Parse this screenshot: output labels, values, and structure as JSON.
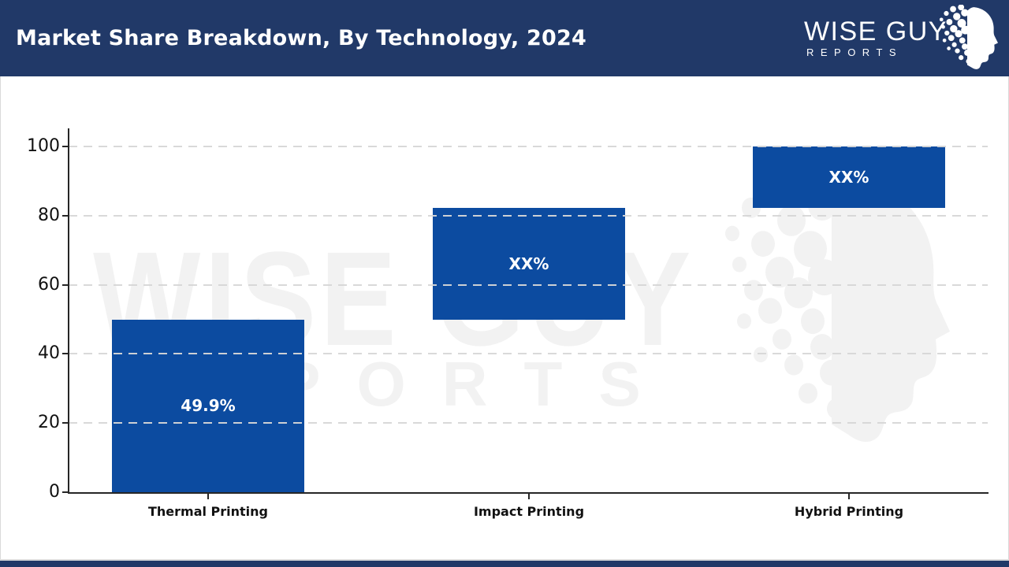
{
  "header": {
    "title": "Market Share Breakdown, By Technology, 2024",
    "logo": {
      "line1": "WISE GUY",
      "line2": "REPORTS"
    }
  },
  "watermark": {
    "line1": "WISE GUY",
    "line2": "REPORTS"
  },
  "chart_data": {
    "type": "bar",
    "subtype": "floating-stacked-segments",
    "title": "Market Share Breakdown, By Technology, 2024",
    "categories": [
      "Thermal Printing",
      "Impact Printing",
      "Hybrid Printing"
    ],
    "series": [
      {
        "name": "Market Share",
        "segments": [
          {
            "category": "Thermal Printing",
            "start": 0,
            "end": 49.9,
            "label": "49.9%"
          },
          {
            "category": "Impact Printing",
            "start": 49.9,
            "end": 82.3,
            "label": "XX%"
          },
          {
            "category": "Hybrid Printing",
            "start": 82.3,
            "end": 100,
            "label": "XX%"
          }
        ]
      }
    ],
    "yticks": [
      0,
      20,
      40,
      60,
      80,
      100
    ],
    "ylim": [
      0,
      100
    ],
    "xlabel": "",
    "ylabel": "",
    "grid": "horizontal-dashed",
    "legend": "none",
    "bar_color": "#0c4ba0",
    "bar_label_color": "#ffffff",
    "header_color": "#213968",
    "gridline_color": "#d7d7d7",
    "axis_color": "#262626"
  }
}
